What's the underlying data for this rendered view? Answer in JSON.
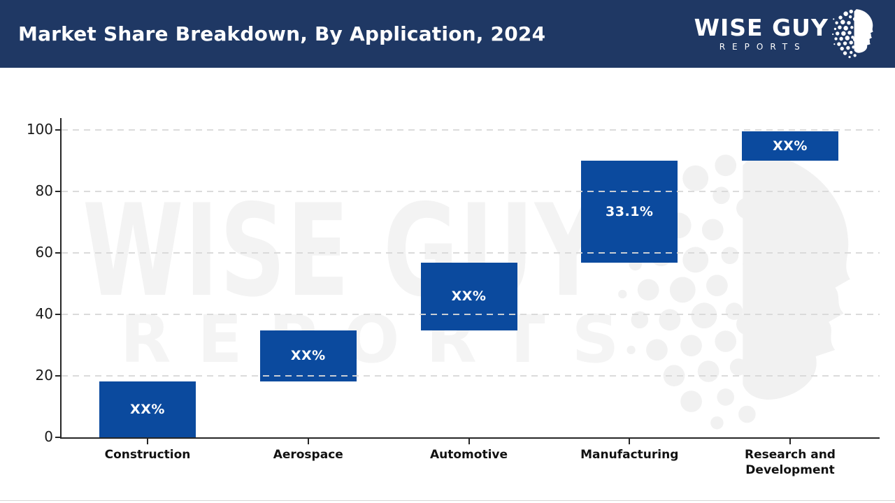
{
  "header": {
    "title": "Market Share Breakdown, By Application, 2024",
    "logo": {
      "wordmark": "WISE GUY",
      "subtext": "REPORTS"
    }
  },
  "watermark": {
    "wordmark": "WISE GUY",
    "subtext": "REPORTS"
  },
  "chart_data": {
    "type": "bar",
    "subtype": "waterfall",
    "title": "Market Share Breakdown, By Application, 2024",
    "categories": [
      "Construction",
      "Aerospace",
      "Automotive",
      "Manufacturing",
      "Research and Development"
    ],
    "segments": [
      {
        "category": "Construction",
        "label": "XX%",
        "start": 0,
        "end": 18.2
      },
      {
        "category": "Aerospace",
        "label": "XX%",
        "start": 18.2,
        "end": 34.8
      },
      {
        "category": "Automotive",
        "label": "XX%",
        "start": 34.8,
        "end": 56.8
      },
      {
        "category": "Manufacturing",
        "label": "33.1%",
        "start": 56.8,
        "end": 89.9
      },
      {
        "category": "Research and Development",
        "label": "XX%",
        "start": 89.9,
        "end": 99.6
      }
    ],
    "ylim": [
      0,
      100
    ],
    "yticks": [
      0,
      20,
      40,
      60,
      80,
      100
    ],
    "grid": "horizontal-dashed-over-bars",
    "legend": "none",
    "colors": {
      "bar": "#0b4a9e",
      "bar_label": "#ffffff",
      "header_bg": "#1f3864",
      "header_text": "#ffffff",
      "axis": "#262626",
      "tick_label": "#1a1a1a",
      "gridline": "#d9d9d9",
      "watermark": "#f2f2f2"
    }
  }
}
